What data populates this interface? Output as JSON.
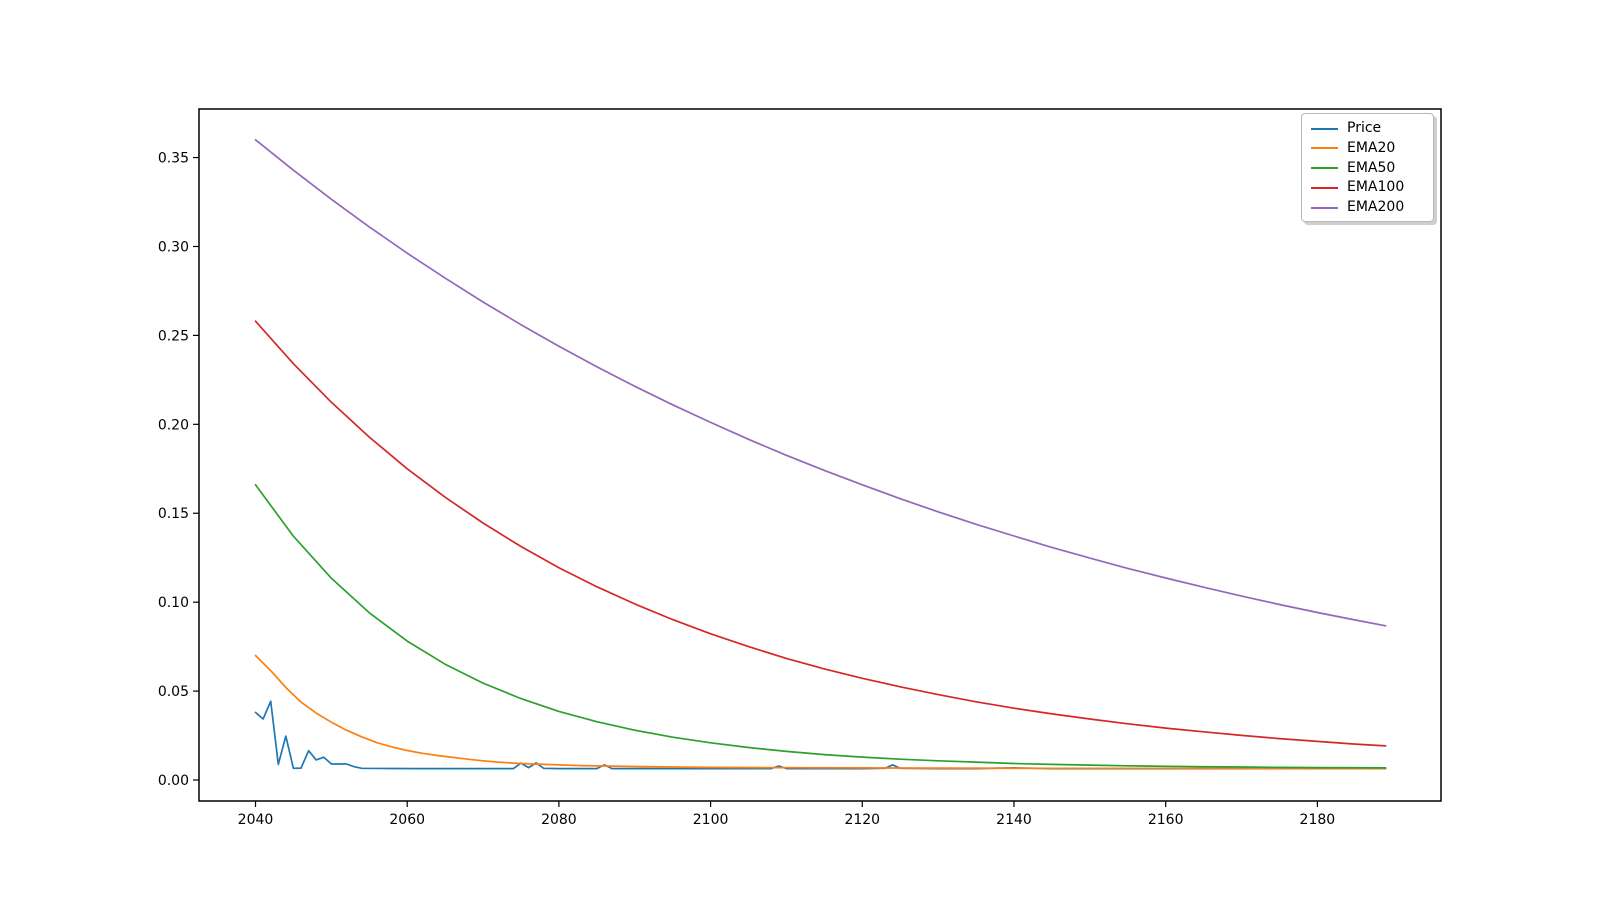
{
  "figure": {
    "background": "#ffffff",
    "spine_color": "#000000",
    "tick_color": "#000000"
  },
  "chart_data": {
    "type": "line",
    "title": "",
    "xlabel": "",
    "ylabel": "",
    "grid": false,
    "legend_position": "upper right",
    "xlim": [
      2032.55,
      2196.3
    ],
    "ylim": [
      -0.0118,
      0.3773
    ],
    "x_ticks": [
      2040,
      2060,
      2080,
      2100,
      2120,
      2140,
      2160,
      2180
    ],
    "y_ticks": [
      0.0,
      0.05,
      0.1,
      0.15,
      0.2,
      0.25,
      0.3,
      0.35
    ],
    "y_tick_format_decimals": 2,
    "series": [
      {
        "name": "Price",
        "color": "#1f77b4",
        "x": [
          2040,
          2041,
          2042,
          2043,
          2044,
          2045,
          2046,
          2047,
          2048,
          2049,
          2050,
          2051,
          2052,
          2053,
          2054,
          2058,
          2062,
          2066,
          2070,
          2074,
          2075,
          2076,
          2077,
          2078,
          2080,
          2083,
          2085,
          2086,
          2087,
          2090,
          2095,
          2100,
          2105,
          2108,
          2109,
          2110,
          2115,
          2120,
          2123,
          2124,
          2125,
          2130,
          2135,
          2140,
          2145,
          2150,
          2160,
          2170,
          2180,
          2189
        ],
        "y": [
          0.038,
          0.0343,
          0.0443,
          0.0088,
          0.0247,
          0.0066,
          0.0067,
          0.0165,
          0.0113,
          0.0128,
          0.009,
          0.009,
          0.009,
          0.0075,
          0.0066,
          0.0065,
          0.0064,
          0.0064,
          0.0064,
          0.0064,
          0.0095,
          0.007,
          0.0096,
          0.0066,
          0.0064,
          0.0064,
          0.0064,
          0.0085,
          0.0064,
          0.0064,
          0.0064,
          0.0064,
          0.0064,
          0.0064,
          0.0078,
          0.0064,
          0.0064,
          0.0064,
          0.0066,
          0.0085,
          0.0066,
          0.0064,
          0.0064,
          0.0068,
          0.0064,
          0.0064,
          0.0064,
          0.0064,
          0.0064,
          0.0064
        ]
      },
      {
        "name": "EMA20",
        "color": "#ff7f0e",
        "x": [
          2040,
          2042,
          2044,
          2046,
          2048,
          2050,
          2052,
          2054,
          2056,
          2058,
          2060,
          2062,
          2064,
          2066,
          2068,
          2070,
          2072,
          2074,
          2076,
          2078,
          2080,
          2083,
          2086,
          2090,
          2095,
          2100,
          2110,
          2120,
          2130,
          2145,
          2160,
          2175,
          2189
        ],
        "y": [
          0.07,
          0.0615,
          0.052,
          0.0438,
          0.0376,
          0.0325,
          0.028,
          0.0243,
          0.021,
          0.0186,
          0.0166,
          0.015,
          0.0138,
          0.0127,
          0.0117,
          0.0108,
          0.0101,
          0.0095,
          0.0091,
          0.0088,
          0.0085,
          0.0081,
          0.0079,
          0.0076,
          0.0073,
          0.0071,
          0.0069,
          0.0068,
          0.0067,
          0.0066,
          0.0066,
          0.0065,
          0.0065
        ]
      },
      {
        "name": "EMA50",
        "color": "#2ca02c",
        "x": [
          2040,
          2045,
          2050,
          2055,
          2060,
          2065,
          2070,
          2075,
          2080,
          2085,
          2090,
          2095,
          2100,
          2105,
          2110,
          2115,
          2120,
          2125,
          2130,
          2135,
          2140,
          2145,
          2150,
          2155,
          2160,
          2165,
          2170,
          2175,
          2180,
          2185,
          2189
        ],
        "y": [
          0.166,
          0.1371,
          0.1134,
          0.094,
          0.0781,
          0.0651,
          0.0545,
          0.0458,
          0.0386,
          0.0328,
          0.028,
          0.0241,
          0.0209,
          0.0183,
          0.0161,
          0.0143,
          0.0129,
          0.0117,
          0.0108,
          0.0101,
          0.0093,
          0.0088,
          0.0084,
          0.008,
          0.0077,
          0.0075,
          0.0073,
          0.0071,
          0.007,
          0.0069,
          0.0068
        ]
      },
      {
        "name": "EMA100",
        "color": "#d62728",
        "x": [
          2040,
          2045,
          2050,
          2055,
          2060,
          2065,
          2070,
          2075,
          2080,
          2085,
          2090,
          2095,
          2100,
          2105,
          2110,
          2115,
          2120,
          2125,
          2130,
          2135,
          2140,
          2145,
          2150,
          2155,
          2160,
          2165,
          2170,
          2175,
          2180,
          2185,
          2189
        ],
        "y": [
          0.258,
          0.2341,
          0.2124,
          0.1928,
          0.175,
          0.159,
          0.1445,
          0.1313,
          0.1194,
          0.1087,
          0.099,
          0.0902,
          0.0822,
          0.075,
          0.0684,
          0.0625,
          0.0572,
          0.0524,
          0.048,
          0.044,
          0.0404,
          0.0372,
          0.0343,
          0.0316,
          0.0292,
          0.0271,
          0.0251,
          0.0233,
          0.0217,
          0.0202,
          0.0192
        ]
      },
      {
        "name": "EMA200",
        "color": "#9467bd",
        "x": [
          2040,
          2045,
          2050,
          2055,
          2060,
          2065,
          2070,
          2075,
          2080,
          2085,
          2090,
          2095,
          2100,
          2105,
          2110,
          2115,
          2120,
          2125,
          2130,
          2135,
          2140,
          2145,
          2150,
          2155,
          2160,
          2165,
          2170,
          2175,
          2180,
          2185,
          2189
        ],
        "y": [
          0.36,
          0.3429,
          0.3265,
          0.311,
          0.2962,
          0.2822,
          0.2688,
          0.256,
          0.2439,
          0.2324,
          0.2214,
          0.211,
          0.2011,
          0.1916,
          0.1826,
          0.1741,
          0.166,
          0.1582,
          0.1508,
          0.1438,
          0.1372,
          0.1308,
          0.1248,
          0.119,
          0.1136,
          0.1084,
          0.1034,
          0.0987,
          0.0942,
          0.09,
          0.0867
        ]
      }
    ],
    "legend_items": [
      "Price",
      "EMA20",
      "EMA50",
      "EMA100",
      "EMA200"
    ]
  }
}
